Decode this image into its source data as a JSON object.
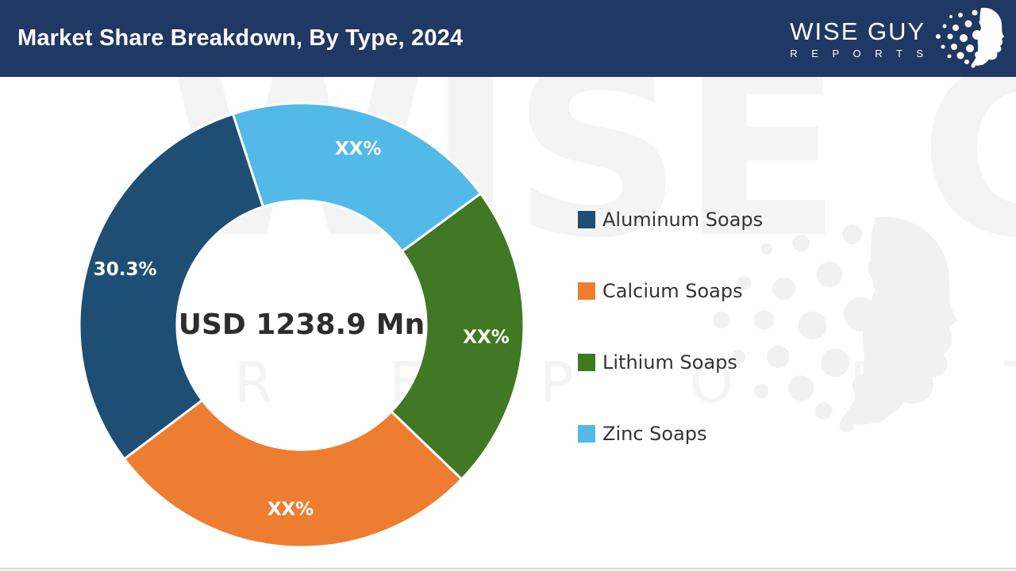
{
  "header": {
    "title": "Market Share Breakdown, By Type, 2024",
    "bg_color": "#1f3864",
    "logo": {
      "line1": "WISE GUY",
      "line2": "R E P O R T S"
    }
  },
  "chart_data": {
    "type": "pie",
    "subtype": "donut",
    "title": "Market Share Breakdown, By Type, 2024",
    "center_label": "USD 1238.9 Mn",
    "categories": [
      "Aluminum Soaps",
      "Calcium Soaps",
      "Lithium Soaps",
      "Zinc Soaps"
    ],
    "values_pct": [
      30.3,
      27.5,
      22.3,
      19.9
    ],
    "slice_labels": [
      "30.3%",
      "XX%",
      "XX%",
      "XX%"
    ],
    "colors": [
      "#1f4e74",
      "#ed7d31",
      "#417823",
      "#52b9e9"
    ],
    "start_angle_deg": 108,
    "direction": "counterclockwise",
    "outer_radius": 280,
    "inner_radius": 157,
    "label_radius": 233,
    "legend_position": "right"
  },
  "watermark": {
    "line1": "WISE GUY",
    "line2": "R E P O R T S"
  }
}
